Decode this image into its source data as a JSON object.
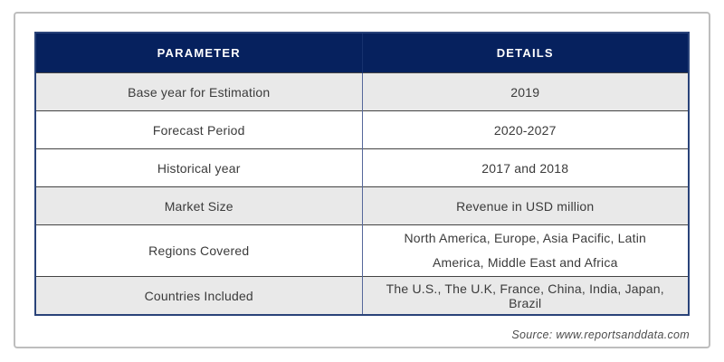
{
  "chart_data": {
    "type": "table",
    "columns": [
      "PARAMETER",
      "DETAILS"
    ],
    "rows": [
      [
        "Base year for Estimation",
        "2019"
      ],
      [
        "Forecast Period",
        "2020-2027"
      ],
      [
        "Historical year",
        "2017 and 2018"
      ],
      [
        "Market Size",
        "Revenue in USD million"
      ],
      [
        "Regions Covered",
        "North America, Europe, Asia Pacific, Latin America, Middle East and Africa"
      ],
      [
        "Countries Included",
        "The U.S., The U.K, France, China, India, Japan, Brazil"
      ]
    ],
    "source_note": "Source: www.reportsanddata.com",
    "layout_hints": {
      "shaded_rows": [
        0,
        3,
        5
      ],
      "two_line_row": 4
    }
  },
  "colors": {
    "header_bg": "#06215E",
    "header_text": "#FFFFFF",
    "shaded_row_bg": "#E9E9E9",
    "plain_row_bg": "#FFFFFF",
    "table_border": "#2A4379",
    "row_divider": "#434343",
    "column_divider": "#56689A",
    "cell_text": "#3B3B3B",
    "source_text": "#4D4D4D",
    "frame_border": "#BEBEBE"
  }
}
